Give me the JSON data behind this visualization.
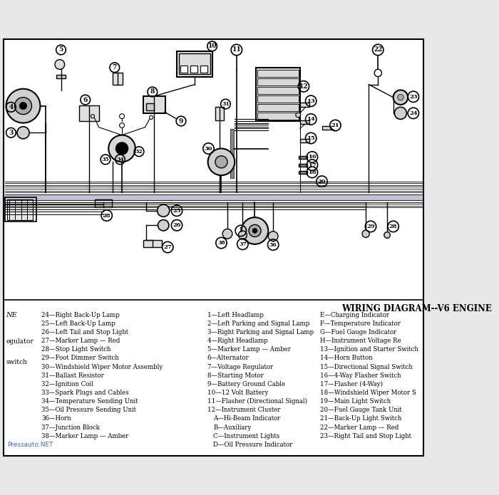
{
  "title": "WIRING DIAGRAM--V6 ENGINE",
  "bg_color": "#e8e8e8",
  "white": "#ffffff",
  "black": "#000000",
  "purple_band": "#b0a0c0",
  "watermark": "Pressauto.NET",
  "watermark_color": "#4466bb",
  "legend_col1": [
    "24—Right Back-Up Lamp",
    "25—Left Back-Up Lamp",
    "26—Left Tail and Stop Light",
    "27—Marker Lamp — Red",
    "28—Stop Light Switch",
    "29—Foot Dimmer Switch",
    "30—Windshield Wiper Motor Assembly",
    "31—Ballast Resistor",
    "32—Ignition Coil",
    "33—Spark Plugs and Cables",
    "34—Temperature Sending Unit",
    "35—Oil Pressure Sending Unit",
    "36—Horn",
    "37—Junction Block",
    "38—Marker Lamp — Amber"
  ],
  "legend_partial_left": [
    "NE",
    "egulator",
    "switch"
  ],
  "legend_col2": [
    "1—Left Headlamp",
    "2—Left Parking and Signal Lamp",
    "3—Right Parking and Signal Lamp",
    "4—Right Headlamp",
    "5—Marker Lamp — Amber",
    "6—Alternator",
    "7—Voltage Regulator",
    "8—Starting Motor",
    "9—Battery Ground Cable",
    "10—12 Volt Battery",
    "11—Flasher (Directional Signal)",
    "12—Instrument Cluster",
    "  A—Hi-Beam Indicator",
    "  B—Auxiliary",
    "  C—Instrument Lights",
    "  D—Oil Pressure Indicator"
  ],
  "legend_col3": [
    "E—Charging Indicator",
    "F—Temperature Indicator",
    "G—Fuel Gauge Indicator",
    "H—Instrument Voltage Re",
    "13—Ignition and Starter Switch",
    "14—Horn Button",
    "15—Directional Signal Switch",
    "16—4-Way Flasher Switch",
    "17—Flasher (4-Way)",
    "18—Windshield Wiper Motor S",
    "19—Main Light Switch",
    "20—Fuel Gauge Tank Unit",
    "21—Back-Up Light Switch",
    "22—Marker Lamp — Red",
    "23—Right Tail and Stop Light"
  ]
}
